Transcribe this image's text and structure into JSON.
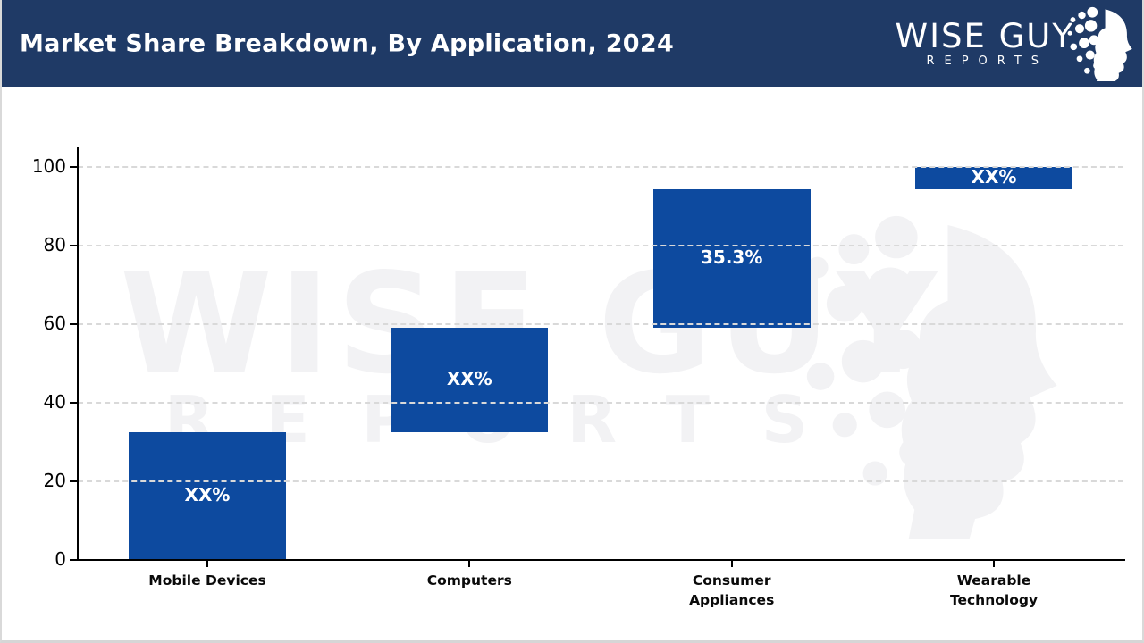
{
  "header": {
    "title": "Market Share Breakdown, By Application, 2024",
    "logo": {
      "line1": "WISE GUY",
      "line2": "REPORTS"
    }
  },
  "watermark": {
    "line1": "WISE GUY",
    "line2": "REPORTS"
  },
  "chart_data": {
    "type": "bar",
    "subtype": "waterfall",
    "title": "Market Share Breakdown, By Application, 2024",
    "categories": [
      "Mobile Devices",
      "Computers",
      "Consumer Appliances",
      "Wearable Technology"
    ],
    "bars": [
      {
        "category": "Mobile Devices",
        "label": "XX%",
        "start": 0,
        "end": 32.5
      },
      {
        "category": "Computers",
        "label": "XX%",
        "start": 32.5,
        "end": 59.0
      },
      {
        "category": "Consumer Appliances",
        "label": "35.3%",
        "start": 59.0,
        "end": 94.3
      },
      {
        "category": "Wearable Technology",
        "label": "XX%",
        "start": 94.3,
        "end": 100
      }
    ],
    "yticks": [
      0,
      20,
      40,
      60,
      80,
      100
    ],
    "ylim": [
      0,
      105
    ],
    "xlabel": "",
    "ylabel": "",
    "grid": "horizontal-dashed",
    "legend": "none",
    "bar_color": "#0d4a9f",
    "bar_label_color": "#ffffff",
    "header_color": "#1f3a66"
  }
}
